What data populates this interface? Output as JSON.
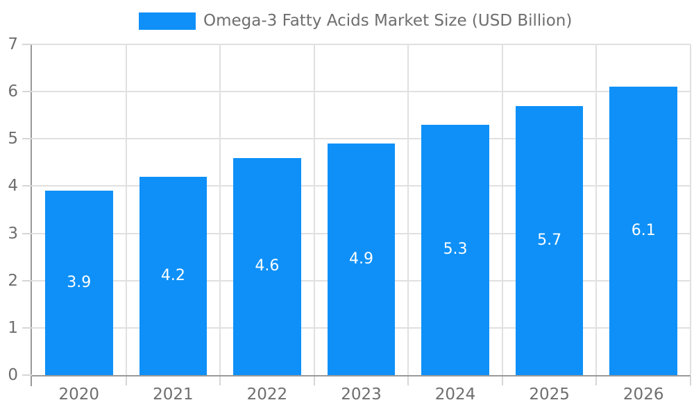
{
  "legend": {
    "label": "Omega-3 Fatty Acids Market Size (USD Billion)",
    "swatch_color": "#0e90f8"
  },
  "chart_data": {
    "type": "bar",
    "title": "Omega-3 Fatty Acids Market Size (USD Billion)",
    "categories": [
      "2020",
      "2021",
      "2022",
      "2023",
      "2024",
      "2025",
      "2026"
    ],
    "series": [
      {
        "name": "Omega-3 Fatty Acids Market Size (USD Billion)",
        "values": [
          3.9,
          4.2,
          4.6,
          4.9,
          5.3,
          5.7,
          6.1
        ]
      }
    ],
    "values": [
      3.9,
      4.2,
      4.6,
      4.9,
      5.3,
      5.7,
      6.1
    ],
    "value_labels": [
      "3.9",
      "4.2",
      "4.6",
      "4.9",
      "5.3",
      "5.7",
      "6.1"
    ],
    "xlabel": "",
    "ylabel": "",
    "ylim": [
      0,
      7
    ],
    "yticks": [
      0,
      1,
      2,
      3,
      4,
      5,
      6,
      7
    ],
    "grid": true,
    "legend_position": "top",
    "colors": {
      "bar": "#0e90f8",
      "grid": "#e0e0e0",
      "tick": "#d6d6d6",
      "axis": "#999999",
      "text": "#6e6e6e",
      "value_label": "#ffffff",
      "background": "#ffffff"
    }
  }
}
